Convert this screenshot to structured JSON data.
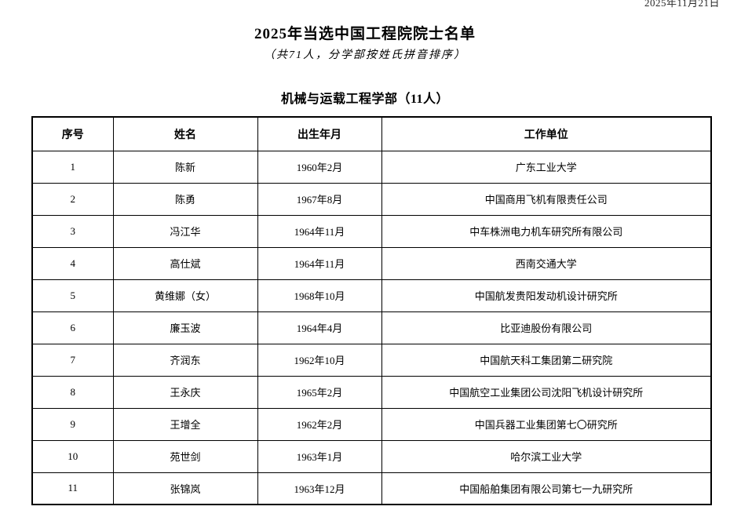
{
  "page": {
    "date_note": "2025年11月21日",
    "title": "2025年当选中国工程院院士名单",
    "subtitle": "（共71人，分学部按姓氏拼音排序）",
    "section_title": "机械与运载工程学部（11人）"
  },
  "table": {
    "headers": [
      "序号",
      "姓名",
      "出生年月",
      "工作单位"
    ],
    "rows": [
      [
        "1",
        "陈新",
        "1960年2月",
        "广东工业大学"
      ],
      [
        "2",
        "陈勇",
        "1967年8月",
        "中国商用飞机有限责任公司"
      ],
      [
        "3",
        "冯江华",
        "1964年11月",
        "中车株洲电力机车研究所有限公司"
      ],
      [
        "4",
        "高仕斌",
        "1964年11月",
        "西南交通大学"
      ],
      [
        "5",
        "黄维娜（女）",
        "1968年10月",
        "中国航发贵阳发动机设计研究所"
      ],
      [
        "6",
        "廉玉波",
        "1964年4月",
        "比亚迪股份有限公司"
      ],
      [
        "7",
        "齐润东",
        "1962年10月",
        "中国航天科工集团第二研究院"
      ],
      [
        "8",
        "王永庆",
        "1965年2月",
        "中国航空工业集团公司沈阳飞机设计研究所"
      ],
      [
        "9",
        "王增全",
        "1962年2月",
        "中国兵器工业集团第七〇研究所"
      ],
      [
        "10",
        "苑世剑",
        "1963年1月",
        "哈尔滨工业大学"
      ],
      [
        "11",
        "张锦岚",
        "1963年12月",
        "中国船舶集团有限公司第七一九研究所"
      ]
    ]
  },
  "colors": {
    "background": "#ffffff",
    "text": "#000000",
    "border": "#000000",
    "date_text": "#2a2a2a"
  }
}
